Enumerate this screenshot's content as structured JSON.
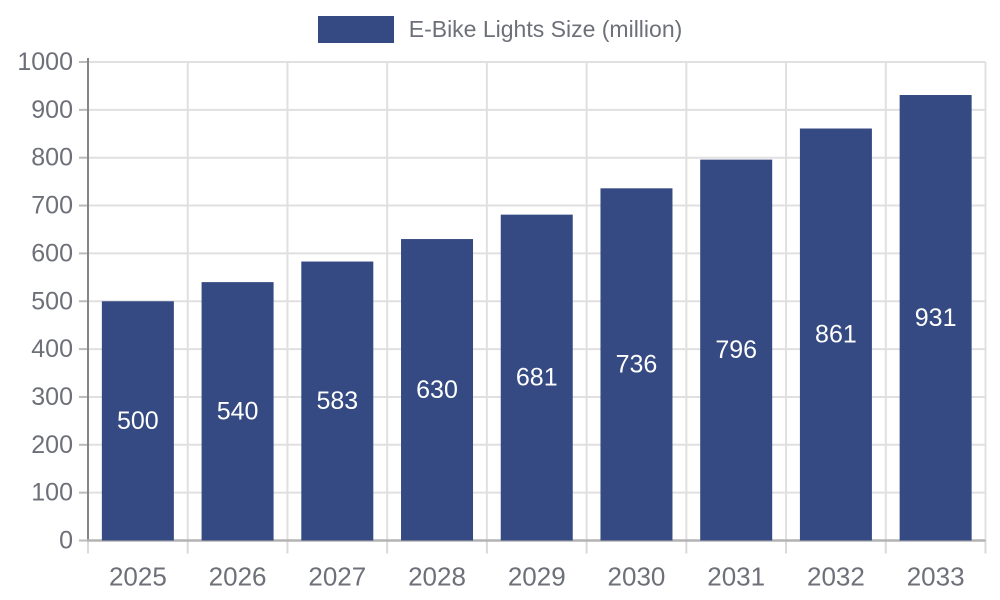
{
  "chart_data": {
    "type": "bar",
    "title": "E-Bike Lights Size (million)",
    "legend": [
      "E-Bike Lights Size (million)"
    ],
    "legend_position": "top-center",
    "categories": [
      "2025",
      "2026",
      "2027",
      "2028",
      "2029",
      "2030",
      "2031",
      "2032",
      "2033"
    ],
    "values": [
      500,
      540,
      583,
      630,
      681,
      736,
      796,
      861,
      931
    ],
    "xlabel": "",
    "ylabel": "",
    "ylim": [
      0,
      1000
    ],
    "ytick_interval": 100,
    "ytick_labels": [
      "0",
      "100",
      "200",
      "300",
      "400",
      "500",
      "600",
      "700",
      "800",
      "900",
      "1000"
    ],
    "grid": true,
    "value_labels_inside_bars": true,
    "colors": {
      "bar": "#354A82",
      "bar_value_label": "#FFFFFF",
      "axis_text": "#6E7079",
      "grid_line": "#E0E0E0",
      "y_axis_line": "#858585",
      "x_axis_line": "#B3B3B3",
      "tick": "#BBBBBB",
      "background": "#FFFFFF"
    }
  }
}
